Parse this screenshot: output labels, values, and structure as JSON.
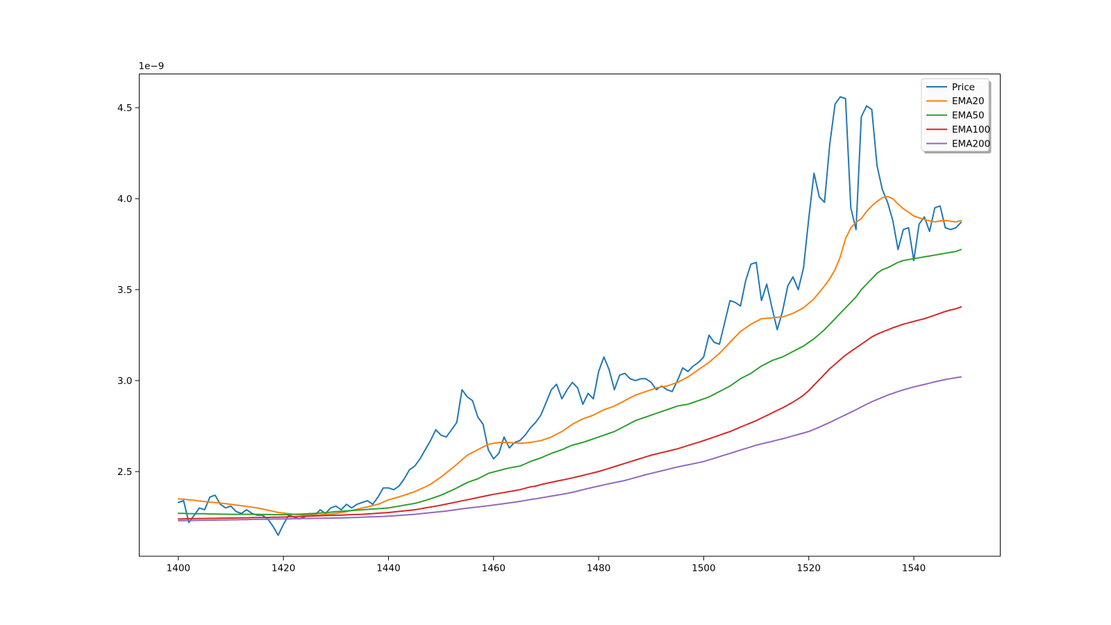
{
  "figure": {
    "background": "#ffffff",
    "title": ""
  },
  "chart_data": {
    "type": "line",
    "title": "",
    "xlabel": "",
    "ylabel": "",
    "y_offset_label": "1e−9",
    "y_unit_multiplier": "1e-9",
    "grid": false,
    "xlim": [
      1392.55,
      1556.45
    ],
    "ylim": [
      2.0345,
      4.6855
    ],
    "xticks": [
      1400,
      1420,
      1440,
      1460,
      1480,
      1500,
      1520,
      1540
    ],
    "xtick_labels": [
      "1400",
      "1420",
      "1440",
      "1460",
      "1480",
      "1500",
      "1520",
      "1540"
    ],
    "yticks": [
      2.5,
      3.0,
      3.5,
      4.0,
      4.5
    ],
    "ytick_labels": [
      "2.5",
      "3.0",
      "3.5",
      "4.0",
      "4.5"
    ],
    "x_start": 1400,
    "x_end": 1549,
    "x_step": 1,
    "legend": {
      "position": "upper-right",
      "shadow": true,
      "border_color": "#cccccc",
      "labels": [
        "Price",
        "EMA20",
        "EMA50",
        "EMA100",
        "EMA200"
      ]
    },
    "series": [
      {
        "name": "Price",
        "color": "#1f77b4",
        "values": [
          2.33,
          2.34,
          2.22,
          2.26,
          2.3,
          2.29,
          2.36,
          2.37,
          2.32,
          2.3,
          2.31,
          2.28,
          2.27,
          2.29,
          2.27,
          2.26,
          2.26,
          2.24,
          2.2,
          2.15,
          2.21,
          2.26,
          2.25,
          2.24,
          2.25,
          2.27,
          2.26,
          2.29,
          2.27,
          2.3,
          2.31,
          2.29,
          2.32,
          2.3,
          2.32,
          2.33,
          2.34,
          2.32,
          2.36,
          2.41,
          2.41,
          2.4,
          2.42,
          2.46,
          2.51,
          2.53,
          2.57,
          2.62,
          2.67,
          2.73,
          2.7,
          2.69,
          2.73,
          2.77,
          2.95,
          2.91,
          2.89,
          2.8,
          2.76,
          2.62,
          2.57,
          2.6,
          2.69,
          2.63,
          2.66,
          2.67,
          2.7,
          2.74,
          2.77,
          2.81,
          2.88,
          2.95,
          2.98,
          2.9,
          2.95,
          2.99,
          2.96,
          2.87,
          2.93,
          2.9,
          3.05,
          3.13,
          3.06,
          2.95,
          3.03,
          3.04,
          3.01,
          3.0,
          3.01,
          3.01,
          2.99,
          2.95,
          2.97,
          2.95,
          2.94,
          3.0,
          3.07,
          3.05,
          3.08,
          3.1,
          3.13,
          3.25,
          3.21,
          3.2,
          3.32,
          3.44,
          3.43,
          3.41,
          3.55,
          3.64,
          3.65,
          3.44,
          3.53,
          3.4,
          3.28,
          3.38,
          3.52,
          3.57,
          3.5,
          3.62,
          3.89,
          4.14,
          4.01,
          3.98,
          4.3,
          4.52,
          4.56,
          4.55,
          3.95,
          3.83,
          4.45,
          4.51,
          4.49,
          4.18,
          4.05,
          3.98,
          3.88,
          3.72,
          3.83,
          3.84,
          3.66,
          3.86,
          3.9,
          3.82,
          3.95,
          3.96,
          3.84,
          3.83,
          3.84,
          3.87
        ]
      },
      {
        "name": "EMA20",
        "color": "#ff7f0e",
        "values": [
          2.35,
          2.348,
          2.345,
          2.342,
          2.338,
          2.335,
          2.332,
          2.33,
          2.327,
          2.324,
          2.32,
          2.316,
          2.312,
          2.308,
          2.304,
          2.3,
          2.294,
          2.288,
          2.282,
          2.275,
          2.272,
          2.268,
          2.265,
          2.263,
          2.261,
          2.26,
          2.261,
          2.262,
          2.265,
          2.267,
          2.27,
          2.275,
          2.28,
          2.286,
          2.293,
          2.3,
          2.306,
          2.313,
          2.32,
          2.332,
          2.345,
          2.353,
          2.361,
          2.37,
          2.38,
          2.39,
          2.403,
          2.416,
          2.43,
          2.45,
          2.47,
          2.493,
          2.516,
          2.54,
          2.565,
          2.59,
          2.605,
          2.62,
          2.635,
          2.65,
          2.655,
          2.66,
          2.66,
          2.66,
          2.657,
          2.655,
          2.657,
          2.66,
          2.665,
          2.67,
          2.68,
          2.69,
          2.705,
          2.72,
          2.74,
          2.76,
          2.775,
          2.79,
          2.8,
          2.81,
          2.825,
          2.84,
          2.85,
          2.86,
          2.875,
          2.89,
          2.905,
          2.92,
          2.93,
          2.94,
          2.95,
          2.96,
          2.965,
          2.97,
          2.98,
          2.99,
          3.005,
          3.02,
          3.04,
          3.06,
          3.08,
          3.1,
          3.125,
          3.15,
          3.18,
          3.21,
          3.24,
          3.27,
          3.29,
          3.31,
          3.325,
          3.34,
          3.343,
          3.345,
          3.348,
          3.35,
          3.36,
          3.37,
          3.385,
          3.4,
          3.425,
          3.45,
          3.485,
          3.52,
          3.56,
          3.61,
          3.68,
          3.78,
          3.84,
          3.87,
          3.89,
          3.93,
          3.96,
          3.985,
          4.005,
          4.012,
          4.0,
          3.97,
          3.945,
          3.925,
          3.905,
          3.895,
          3.885,
          3.878,
          3.872,
          3.878,
          3.88,
          3.876,
          3.872,
          3.88
        ]
      },
      {
        "name": "EMA50",
        "color": "#2ca02c",
        "values": [
          2.27,
          2.27,
          2.269,
          2.268,
          2.268,
          2.268,
          2.267,
          2.267,
          2.266,
          2.266,
          2.265,
          2.265,
          2.265,
          2.265,
          2.265,
          2.265,
          2.264,
          2.264,
          2.263,
          2.263,
          2.263,
          2.264,
          2.265,
          2.266,
          2.267,
          2.268,
          2.27,
          2.272,
          2.274,
          2.277,
          2.28,
          2.282,
          2.284,
          2.286,
          2.288,
          2.29,
          2.292,
          2.294,
          2.296,
          2.298,
          2.3,
          2.305,
          2.31,
          2.315,
          2.32,
          2.325,
          2.333,
          2.341,
          2.35,
          2.36,
          2.37,
          2.383,
          2.396,
          2.41,
          2.425,
          2.44,
          2.45,
          2.46,
          2.475,
          2.49,
          2.498,
          2.505,
          2.513,
          2.52,
          2.525,
          2.53,
          2.542,
          2.555,
          2.565,
          2.575,
          2.588,
          2.6,
          2.61,
          2.62,
          2.633,
          2.645,
          2.653,
          2.66,
          2.67,
          2.68,
          2.69,
          2.7,
          2.71,
          2.72,
          2.735,
          2.75,
          2.765,
          2.78,
          2.79,
          2.8,
          2.81,
          2.82,
          2.83,
          2.84,
          2.85,
          2.86,
          2.865,
          2.87,
          2.88,
          2.89,
          2.9,
          2.91,
          2.925,
          2.94,
          2.955,
          2.97,
          2.99,
          3.01,
          3.025,
          3.04,
          3.06,
          3.08,
          3.095,
          3.11,
          3.12,
          3.13,
          3.145,
          3.16,
          3.175,
          3.19,
          3.21,
          3.23,
          3.255,
          3.28,
          3.31,
          3.34,
          3.37,
          3.4,
          3.43,
          3.46,
          3.5,
          3.53,
          3.56,
          3.59,
          3.61,
          3.62,
          3.635,
          3.65,
          3.66,
          3.665,
          3.67,
          3.675,
          3.68,
          3.685,
          3.69,
          3.695,
          3.7,
          3.705,
          3.71,
          3.72
        ]
      },
      {
        "name": "EMA100",
        "color": "#d62728",
        "values": [
          2.24,
          2.24,
          2.241,
          2.241,
          2.242,
          2.242,
          2.243,
          2.243,
          2.244,
          2.244,
          2.245,
          2.245,
          2.246,
          2.246,
          2.247,
          2.247,
          2.248,
          2.248,
          2.249,
          2.249,
          2.25,
          2.251,
          2.252,
          2.253,
          2.254,
          2.255,
          2.256,
          2.257,
          2.258,
          2.259,
          2.26,
          2.261,
          2.262,
          2.263,
          2.264,
          2.265,
          2.267,
          2.269,
          2.271,
          2.273,
          2.275,
          2.278,
          2.281,
          2.284,
          2.287,
          2.29,
          2.295,
          2.3,
          2.305,
          2.31,
          2.315,
          2.321,
          2.327,
          2.333,
          2.339,
          2.345,
          2.351,
          2.357,
          2.363,
          2.369,
          2.375,
          2.38,
          2.385,
          2.39,
          2.395,
          2.4,
          2.408,
          2.416,
          2.42,
          2.428,
          2.435,
          2.441,
          2.447,
          2.453,
          2.459,
          2.465,
          2.472,
          2.479,
          2.486,
          2.493,
          2.5,
          2.509,
          2.518,
          2.527,
          2.536,
          2.545,
          2.554,
          2.563,
          2.572,
          2.581,
          2.59,
          2.597,
          2.604,
          2.611,
          2.618,
          2.625,
          2.634,
          2.643,
          2.652,
          2.661,
          2.67,
          2.68,
          2.69,
          2.7,
          2.71,
          2.72,
          2.732,
          2.744,
          2.756,
          2.768,
          2.78,
          2.794,
          2.808,
          2.822,
          2.836,
          2.85,
          2.866,
          2.882,
          2.9,
          2.92,
          2.945,
          2.975,
          3.005,
          3.035,
          3.065,
          3.09,
          3.115,
          3.14,
          3.16,
          3.18,
          3.2,
          3.22,
          3.24,
          3.255,
          3.267,
          3.278,
          3.29,
          3.3,
          3.31,
          3.318,
          3.325,
          3.333,
          3.34,
          3.35,
          3.36,
          3.37,
          3.38,
          3.388,
          3.395,
          3.405
        ]
      },
      {
        "name": "EMA200",
        "color": "#9467bd",
        "values": [
          2.23,
          2.23,
          2.231,
          2.231,
          2.232,
          2.232,
          2.233,
          2.233,
          2.234,
          2.234,
          2.235,
          2.235,
          2.236,
          2.236,
          2.237,
          2.237,
          2.238,
          2.238,
          2.239,
          2.239,
          2.24,
          2.24,
          2.241,
          2.241,
          2.242,
          2.242,
          2.243,
          2.243,
          2.244,
          2.244,
          2.245,
          2.245,
          2.246,
          2.247,
          2.248,
          2.249,
          2.25,
          2.251,
          2.252,
          2.253,
          2.255,
          2.257,
          2.259,
          2.261,
          2.263,
          2.265,
          2.268,
          2.271,
          2.274,
          2.277,
          2.28,
          2.283,
          2.287,
          2.291,
          2.295,
          2.299,
          2.302,
          2.305,
          2.309,
          2.312,
          2.316,
          2.32,
          2.324,
          2.328,
          2.332,
          2.336,
          2.341,
          2.346,
          2.35,
          2.355,
          2.36,
          2.365,
          2.37,
          2.375,
          2.38,
          2.386,
          2.393,
          2.4,
          2.407,
          2.414,
          2.42,
          2.427,
          2.433,
          2.439,
          2.445,
          2.451,
          2.459,
          2.467,
          2.475,
          2.483,
          2.49,
          2.497,
          2.504,
          2.511,
          2.518,
          2.525,
          2.531,
          2.537,
          2.543,
          2.549,
          2.555,
          2.564,
          2.573,
          2.582,
          2.591,
          2.6,
          2.609,
          2.618,
          2.627,
          2.636,
          2.645,
          2.652,
          2.659,
          2.666,
          2.673,
          2.68,
          2.688,
          2.696,
          2.704,
          2.712,
          2.72,
          2.732,
          2.744,
          2.757,
          2.77,
          2.784,
          2.798,
          2.812,
          2.826,
          2.84,
          2.855,
          2.87,
          2.884,
          2.896,
          2.908,
          2.92,
          2.93,
          2.94,
          2.949,
          2.957,
          2.965,
          2.972,
          2.979,
          2.986,
          2.993,
          3.0,
          3.006,
          3.011,
          3.016,
          3.02
        ]
      }
    ]
  }
}
